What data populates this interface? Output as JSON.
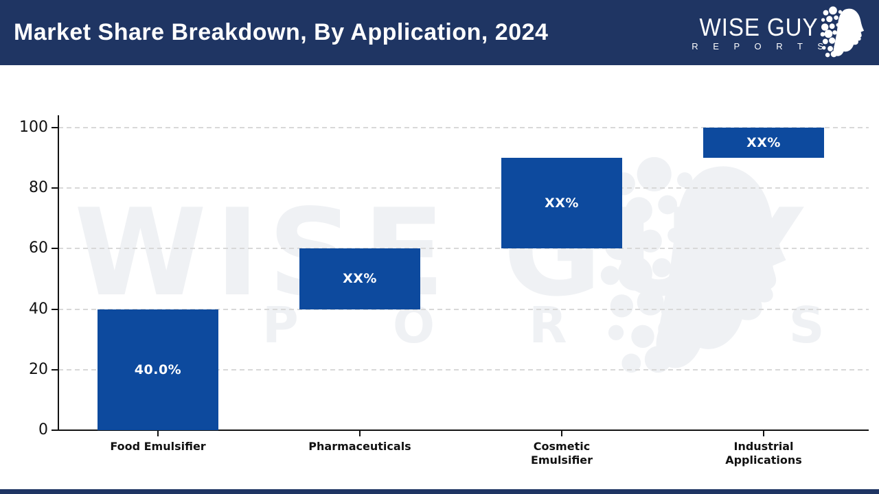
{
  "header": {
    "title": "Market Share Breakdown, By Application, 2024",
    "logo": {
      "line1": "WISE GUY",
      "line2": "R E P O R T S"
    },
    "bg_color": "#1f3563"
  },
  "watermark": {
    "line1": "WISE GUY",
    "line2": "P O R T S",
    "color": "#eff1f4"
  },
  "chart_data": {
    "type": "bar",
    "subtype": "waterfall",
    "title": "Market Share Breakdown, By Application, 2024",
    "categories": [
      "Food Emulsifier",
      "Pharmaceuticals",
      "Cosmetic Emulsifier",
      "Industrial Applications"
    ],
    "categories_display": [
      [
        "Food Emulsifier"
      ],
      [
        "Pharmaceuticals"
      ],
      [
        "Cosmetic",
        "Emulsifier"
      ],
      [
        "Industrial",
        "Applications"
      ]
    ],
    "segments": [
      {
        "category": "Food Emulsifier",
        "start": 0,
        "end": 40,
        "label": "40.0%"
      },
      {
        "category": "Pharmaceuticals",
        "start": 40,
        "end": 60,
        "label": "XX%"
      },
      {
        "category": "Cosmetic Emulsifier",
        "start": 60,
        "end": 90,
        "label": "XX%"
      },
      {
        "category": "Industrial Applications",
        "start": 90,
        "end": 100,
        "label": "XX%"
      }
    ],
    "xlabel": "",
    "ylabel": "",
    "yticks": [
      0,
      20,
      40,
      60,
      80,
      100
    ],
    "ylim": [
      0,
      100
    ],
    "grid": "dashed-horizontal",
    "legend": "none",
    "bar_color": "#0d4a9e",
    "bar_label_color": "#ffffff",
    "gridline_color": "#d8d8d8",
    "axis_color": "#111111"
  }
}
